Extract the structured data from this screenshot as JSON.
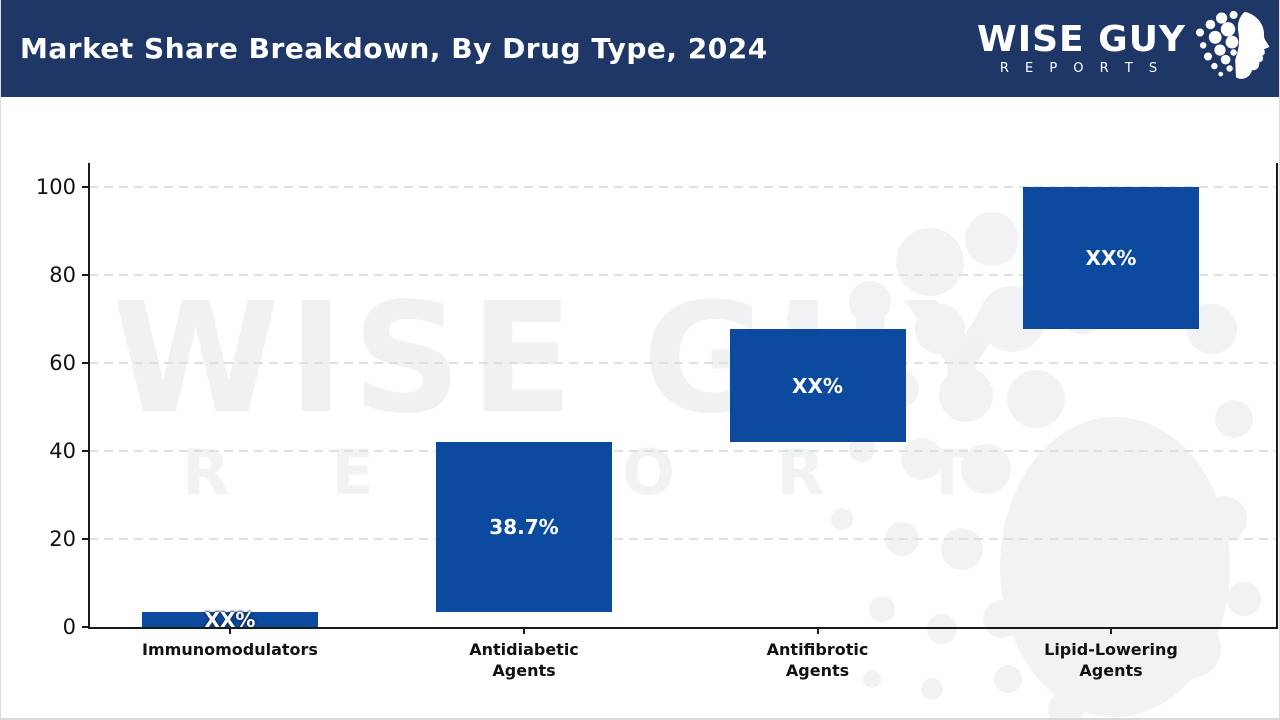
{
  "header": {
    "title": "Market Share Breakdown, By Drug Type, 2024",
    "logo": {
      "name_line": "WISE GUY",
      "sub_line": "R E P O R T S"
    }
  },
  "watermark": {
    "name_line": "WISE GUY",
    "sub_line": "R E P O R T S"
  },
  "colors": {
    "header_bg": "#1F3767",
    "bar_fill": "#0B4A9E",
    "value_label_text": "#FFFFFF",
    "grid_line": "#E0E0E0",
    "axis": "#1A1A1A",
    "watermark": "#F0F1F3"
  },
  "chart_data": {
    "type": "bar",
    "variant": "waterfall-stacked",
    "title": "Market Share Breakdown, By Drug Type, 2024",
    "xlabel": "",
    "ylabel": "",
    "ylim": [
      0,
      105
    ],
    "yticks": [
      0,
      20,
      40,
      60,
      80,
      100
    ],
    "grid": "horizontal-dashed",
    "legend": "none",
    "categories": [
      "Immunomodulators",
      "Antidiabetic\nAgents",
      "Antifibrotic\nAgents",
      "Lipid-Lowering\nAgents"
    ],
    "segments": [
      {
        "category": "Immunomodulators",
        "start": 0,
        "end": 3.3,
        "label": "XX%"
      },
      {
        "category": "Antidiabetic Agents",
        "start": 3.3,
        "end": 42.0,
        "label": "38.7%"
      },
      {
        "category": "Antifibrotic Agents",
        "start": 42.0,
        "end": 67.7,
        "label": "XX%"
      },
      {
        "category": "Lipid-Lowering Agents",
        "start": 67.7,
        "end": 100.0,
        "label": "XX%"
      }
    ]
  }
}
